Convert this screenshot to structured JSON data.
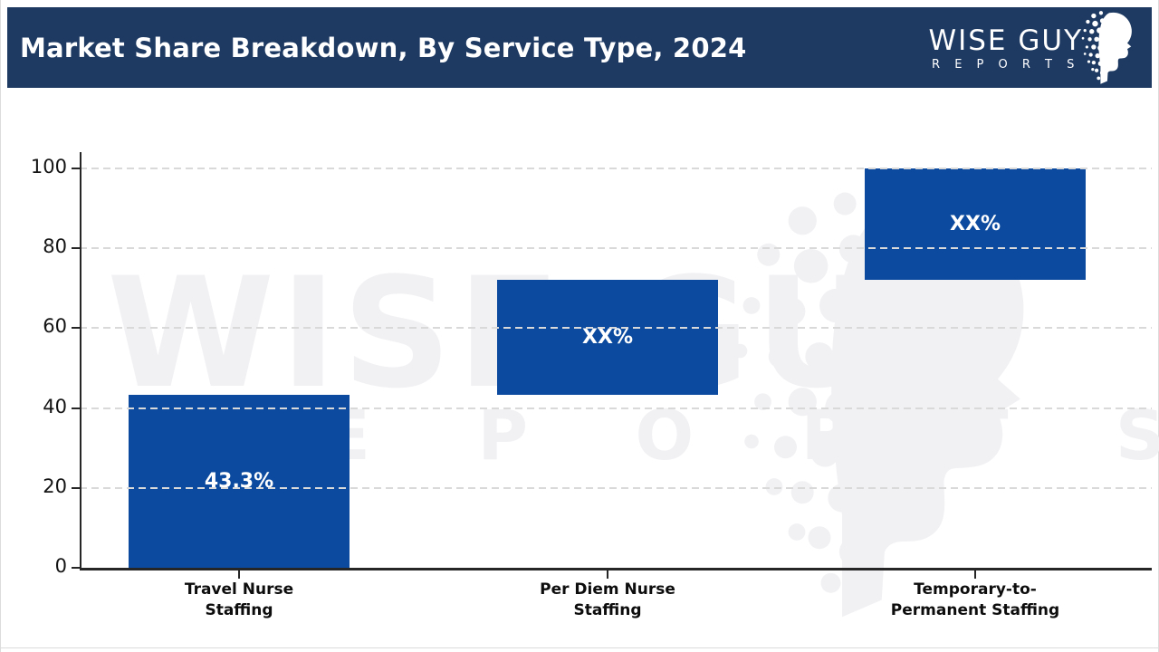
{
  "header": {
    "title": "Market Share Breakdown, By Service Type, 2024",
    "bg_color": "#1e3a63",
    "logo": {
      "name": "WISE GUY",
      "sub": "R E P O R T S"
    }
  },
  "watermark": {
    "main": "WISE GUY",
    "sub": "R E P O R T S"
  },
  "chart_data": {
    "type": "bar",
    "variant": "waterfall",
    "title": "Market Share Breakdown, By Service Type, 2024",
    "categories": [
      {
        "line1": "Travel Nurse",
        "line2": "Staffing"
      },
      {
        "line1": "Per Diem Nurse",
        "line2": "Staffing"
      },
      {
        "line1": "Temporary-to-",
        "line2": "Permanent Staffing"
      }
    ],
    "segments": [
      {
        "start": 0,
        "end": 43.3,
        "label": "43.3%"
      },
      {
        "start": 43.3,
        "end": 72,
        "label": "XX%"
      },
      {
        "start": 72,
        "end": 100,
        "label": "XX%"
      }
    ],
    "yticks": [
      0,
      20,
      40,
      60,
      80,
      100
    ],
    "ylim": [
      0,
      100
    ],
    "ylabel": "",
    "xlabel": "",
    "bar_color": "#0b4a9e",
    "grid": {
      "axis": "y",
      "style": "dashed",
      "color": "#d9d9d9",
      "above_bars": true
    },
    "legend_position": "none"
  }
}
